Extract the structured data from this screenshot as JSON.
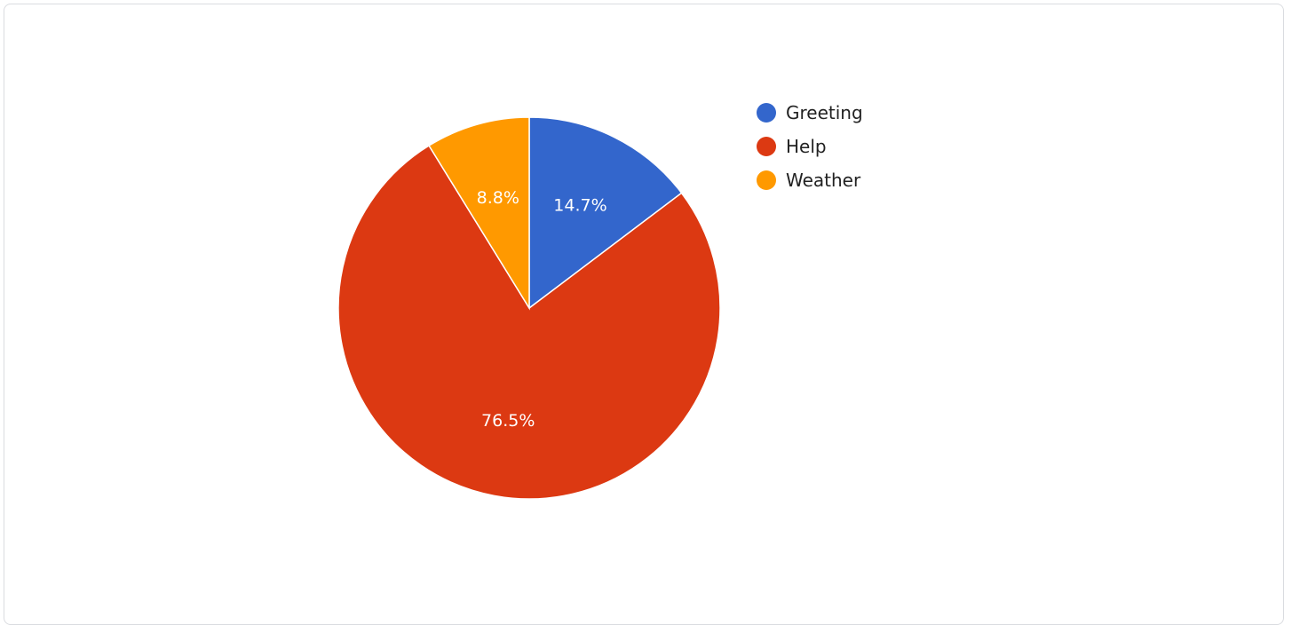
{
  "chart_data": {
    "type": "pie",
    "title": "",
    "categories": [
      "Greeting",
      "Help",
      "Weather"
    ],
    "values": [
      14.7,
      76.5,
      8.8
    ],
    "value_labels": [
      "14.7%",
      "76.5%",
      "8.8%"
    ],
    "colors": [
      "#3366cc",
      "#dc3912",
      "#ff9900"
    ],
    "start_angle_deg": 0,
    "direction": "clockwise",
    "legend": {
      "position": "right",
      "entries": [
        "Greeting",
        "Help",
        "Weather"
      ]
    }
  }
}
